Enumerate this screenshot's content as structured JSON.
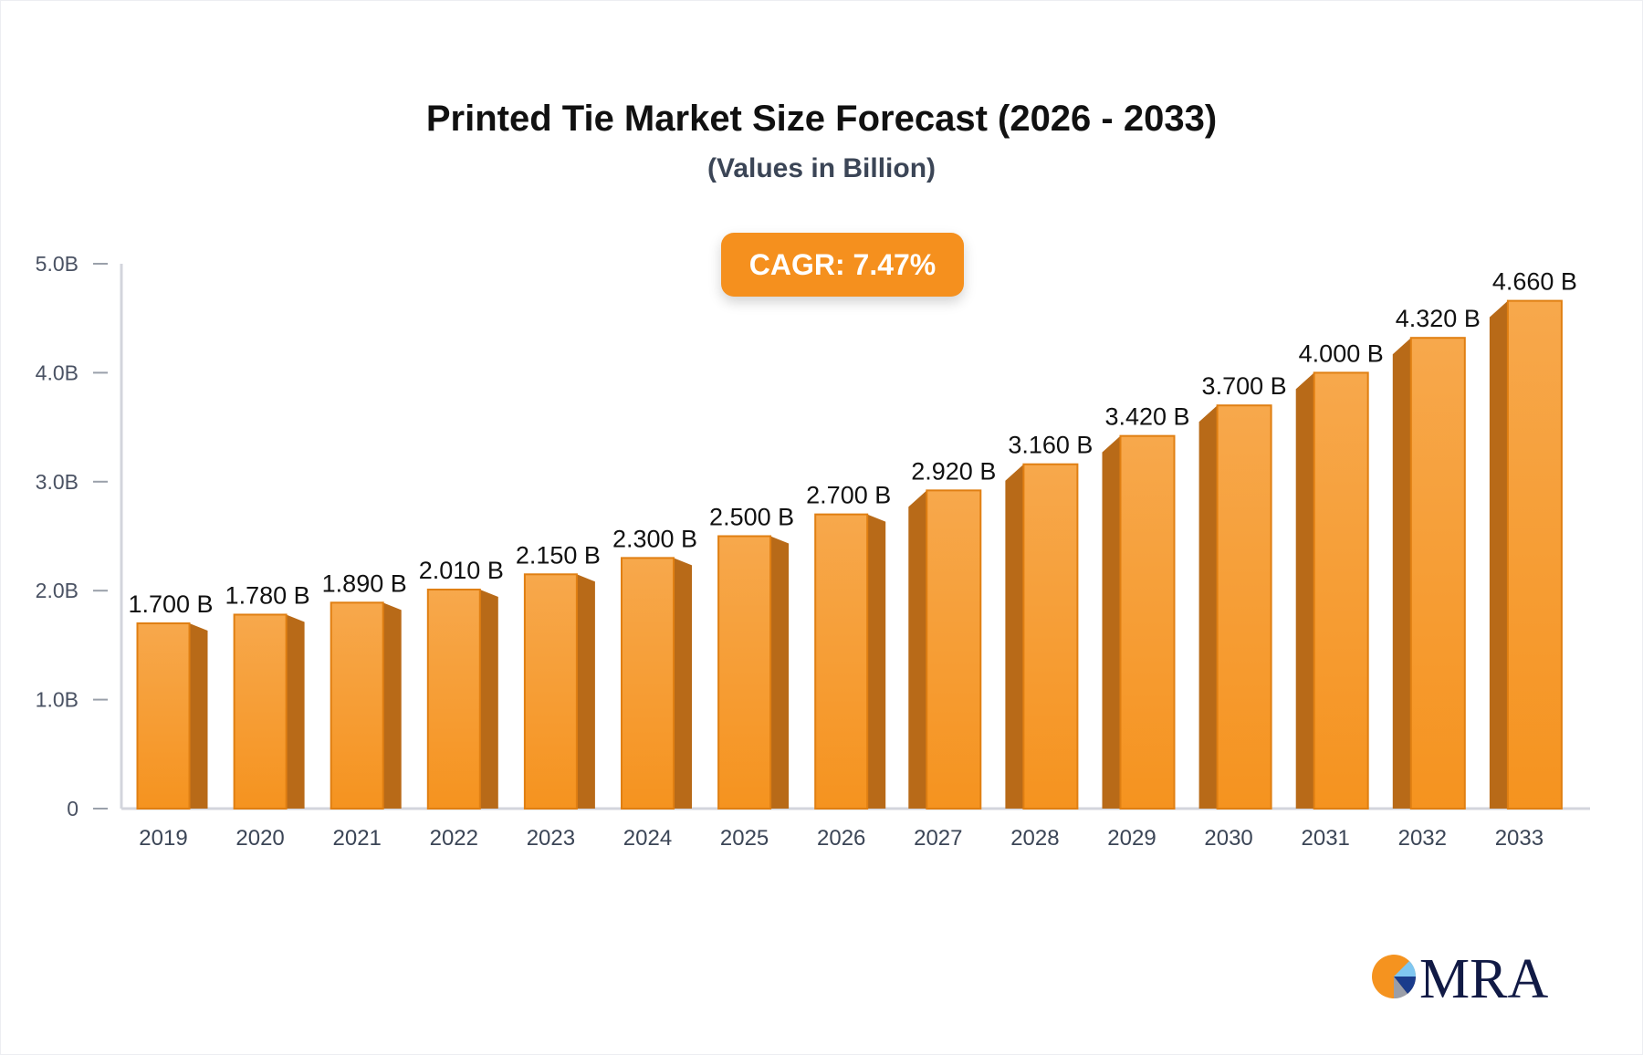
{
  "chart_data": {
    "type": "bar",
    "title": "Printed Tie Market Size Forecast (2026 - 2033)",
    "subtitle": "(Values in Billion)",
    "annotation": "CAGR: 7.47%",
    "categories": [
      "2019",
      "2020",
      "2021",
      "2022",
      "2023",
      "2024",
      "2025",
      "2026",
      "2027",
      "2028",
      "2029",
      "2030",
      "2031",
      "2032",
      "2033"
    ],
    "values": [
      1.7,
      1.78,
      1.89,
      2.01,
      2.15,
      2.3,
      2.5,
      2.7,
      2.92,
      3.16,
      3.42,
      3.7,
      4.0,
      4.32,
      4.66
    ],
    "data_labels": [
      "1.700 B",
      "1.780 B",
      "1.890 B",
      "2.010 B",
      "2.150 B",
      "2.300 B",
      "2.500 B",
      "2.700 B",
      "2.920 B",
      "3.160 B",
      "3.420 B",
      "3.700 B",
      "4.000 B",
      "4.320 B",
      "4.660 B"
    ],
    "ylim": [
      0,
      5
    ],
    "yticks": [
      0,
      1,
      2,
      3,
      4,
      5
    ],
    "ytick_labels": [
      "0",
      "1.0B",
      "2.0B",
      "3.0B",
      "4.0B",
      "5.0B"
    ],
    "xlabel": "",
    "ylabel": "",
    "grid": false,
    "colors": {
      "bar_top": "#f7a84c",
      "bar_bottom": "#f5931f",
      "bar_side": "#b86a18",
      "bar_edge": "#e07f12",
      "axis": "#d3d5dc",
      "cagr_bg": "#f5901e"
    }
  },
  "logo": {
    "text": "MRA"
  }
}
